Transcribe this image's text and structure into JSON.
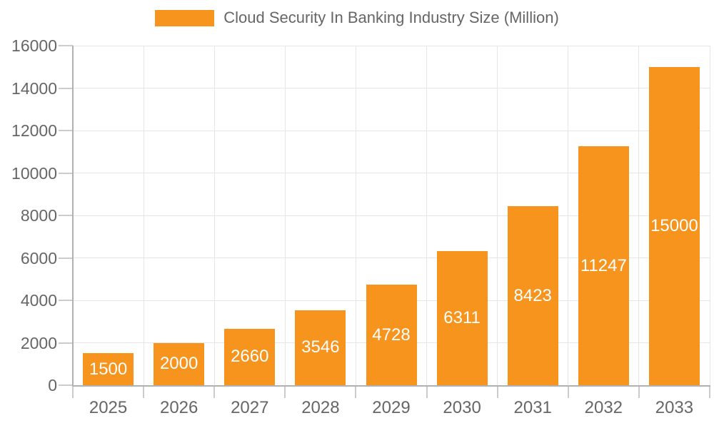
{
  "chart_data": {
    "type": "bar",
    "title": "Cloud Security In Banking Industry Size (Million)",
    "legend_position": "top-center",
    "categories": [
      "2025",
      "2026",
      "2027",
      "2028",
      "2029",
      "2030",
      "2031",
      "2032",
      "2033"
    ],
    "series": [
      {
        "name": "Cloud Security In Banking Industry Size (Million)",
        "values": [
          1500,
          2000,
          2660,
          3546,
          4728,
          6311,
          8423,
          11247,
          15000
        ]
      }
    ],
    "xlabel": "",
    "ylabel": "",
    "ylim": [
      0,
      16000
    ],
    "yticks": [
      0,
      2000,
      4000,
      6000,
      8000,
      10000,
      12000,
      14000,
      16000
    ],
    "grid": "on",
    "bar_labels_visible": true,
    "colors": {
      "bar": "#F7941E",
      "bar_label": "#FFFFFF",
      "axis_text": "#666666",
      "title_text": "#666666",
      "gridline": "#E6E6E6",
      "tick": "#CCCCCC",
      "axis_line": "#B1B1B1",
      "background": "#FFFFFF"
    }
  }
}
